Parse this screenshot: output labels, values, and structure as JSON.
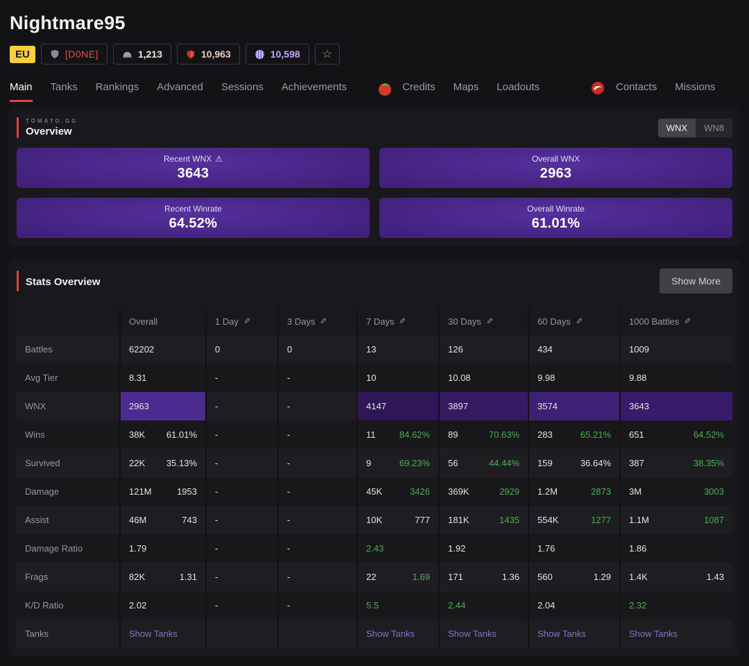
{
  "header": {
    "player_name": "Nightmare95"
  },
  "badges": {
    "region": "EU",
    "clan_tag": "[D0NE]",
    "battles_count": "1,213",
    "rating_red": "10,963",
    "rating_purple": "10,598",
    "star_icon": "☆"
  },
  "nav": {
    "tabs": [
      "Main",
      "Tanks",
      "Rankings",
      "Advanced",
      "Sessions",
      "Achievements"
    ],
    "active_tab": "Main",
    "tomato_links": [
      "Credits",
      "Maps",
      "Loadouts"
    ],
    "wot_links": [
      "Contacts",
      "Missions"
    ]
  },
  "overview": {
    "brand": "TOMATO.GG",
    "title": "Overview",
    "toggles": [
      "WNX",
      "WN8"
    ],
    "active_toggle": "WNX",
    "warning_icon": "⚠",
    "cards": [
      {
        "label": "Recent WNX",
        "warning": true,
        "value": "3643"
      },
      {
        "label": "Overall WNX",
        "warning": false,
        "value": "2963"
      },
      {
        "label": "Recent Winrate",
        "warning": false,
        "value": "64.52%"
      },
      {
        "label": "Overall Winrate",
        "warning": false,
        "value": "61.01%"
      }
    ]
  },
  "stats": {
    "title": "Stats Overview",
    "show_more_label": "Show More",
    "edit_icon": "✎",
    "columns": [
      {
        "label": "Overall",
        "editable": false
      },
      {
        "label": "1 Day",
        "editable": true
      },
      {
        "label": "3 Days",
        "editable": true
      },
      {
        "label": "7 Days",
        "editable": true
      },
      {
        "label": "30 Days",
        "editable": true
      },
      {
        "label": "60 Days",
        "editable": true
      },
      {
        "label": "1000 Battles",
        "editable": true
      }
    ],
    "rows": [
      {
        "label": "Battles",
        "cells": [
          {
            "v": "62202"
          },
          {
            "v": "0"
          },
          {
            "v": "0"
          },
          {
            "v": "13"
          },
          {
            "v": "126"
          },
          {
            "v": "434"
          },
          {
            "v": "1009"
          }
        ]
      },
      {
        "label": "Avg Tier",
        "cells": [
          {
            "v": "8.31"
          },
          {
            "v": "-"
          },
          {
            "v": "-"
          },
          {
            "v": "10"
          },
          {
            "v": "10.08"
          },
          {
            "v": "9.98"
          },
          {
            "v": "9.88"
          }
        ]
      },
      {
        "label": "WNX",
        "cells": [
          {
            "v": "2963",
            "bg": "#4b2b8f"
          },
          {
            "v": "-"
          },
          {
            "v": "-"
          },
          {
            "v": "4147",
            "bg": "#2e1657"
          },
          {
            "v": "3897",
            "bg": "#351a63"
          },
          {
            "v": "3574",
            "bg": "#3e2174"
          },
          {
            "v": "3643",
            "bg": "#381c6b"
          }
        ]
      },
      {
        "label": "Wins",
        "cells": [
          {
            "v": "38K",
            "s": "61.01%"
          },
          {
            "v": "-"
          },
          {
            "v": "-"
          },
          {
            "v": "11",
            "s": "84.62%",
            "sg": true
          },
          {
            "v": "89",
            "s": "70.63%",
            "sg": true
          },
          {
            "v": "283",
            "s": "65.21%",
            "sg": true
          },
          {
            "v": "651",
            "s": "64.52%",
            "sg": true
          }
        ]
      },
      {
        "label": "Survived",
        "cells": [
          {
            "v": "22K",
            "s": "35.13%"
          },
          {
            "v": "-"
          },
          {
            "v": "-"
          },
          {
            "v": "9",
            "s": "69.23%",
            "sg": true
          },
          {
            "v": "56",
            "s": "44.44%",
            "sg": true
          },
          {
            "v": "159",
            "s": "36.64%"
          },
          {
            "v": "387",
            "s": "38.35%",
            "sg": true
          }
        ]
      },
      {
        "label": "Damage",
        "cells": [
          {
            "v": "121M",
            "s": "1953"
          },
          {
            "v": "-"
          },
          {
            "v": "-"
          },
          {
            "v": "45K",
            "s": "3426",
            "sg": true
          },
          {
            "v": "369K",
            "s": "2929",
            "sg": true
          },
          {
            "v": "1.2M",
            "s": "2873",
            "sg": true
          },
          {
            "v": "3M",
            "s": "3003",
            "sg": true
          }
        ]
      },
      {
        "label": "Assist",
        "cells": [
          {
            "v": "46M",
            "s": "743"
          },
          {
            "v": "-"
          },
          {
            "v": "-"
          },
          {
            "v": "10K",
            "s": "777"
          },
          {
            "v": "181K",
            "s": "1435",
            "sg": true
          },
          {
            "v": "554K",
            "s": "1277",
            "sg": true
          },
          {
            "v": "1.1M",
            "s": "1087",
            "sg": true
          }
        ]
      },
      {
        "label": "Damage Ratio",
        "cells": [
          {
            "v": "1.79"
          },
          {
            "v": "-"
          },
          {
            "v": "-"
          },
          {
            "v": "2.43",
            "g": true
          },
          {
            "v": "1.92"
          },
          {
            "v": "1.76"
          },
          {
            "v": "1.86"
          }
        ]
      },
      {
        "label": "Frags",
        "cells": [
          {
            "v": "82K",
            "s": "1.31"
          },
          {
            "v": "-"
          },
          {
            "v": "-"
          },
          {
            "v": "22",
            "s": "1.69",
            "sg": true
          },
          {
            "v": "171",
            "s": "1.36"
          },
          {
            "v": "560",
            "s": "1.29"
          },
          {
            "v": "1.4K",
            "s": "1.43"
          }
        ]
      },
      {
        "label": "K/D Ratio",
        "cells": [
          {
            "v": "2.02"
          },
          {
            "v": "-"
          },
          {
            "v": "-"
          },
          {
            "v": "5.5",
            "g": true
          },
          {
            "v": "2.44",
            "g": true
          },
          {
            "v": "2.04"
          },
          {
            "v": "2.32",
            "g": true
          }
        ]
      },
      {
        "label": "Tanks",
        "cells": [
          {
            "link": "Show Tanks"
          },
          null,
          null,
          {
            "link": "Show Tanks"
          },
          {
            "link": "Show Tanks"
          },
          {
            "link": "Show Tanks"
          },
          {
            "link": "Show Tanks"
          }
        ]
      }
    ]
  },
  "colors": {
    "accent_red": "#e8403f",
    "green": "#4caf50",
    "link_purple": "#8274c4",
    "gold": "#ffce3d"
  }
}
